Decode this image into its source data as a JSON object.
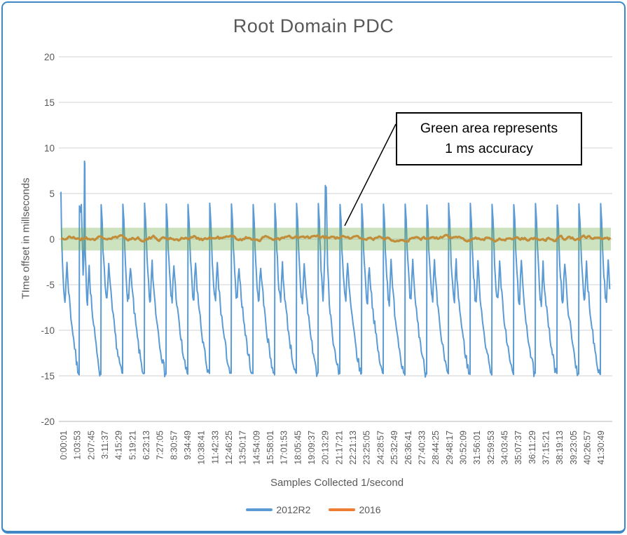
{
  "frame": {
    "border_color": "#3f87c5",
    "background": "#ffffff"
  },
  "chart": {
    "title": "Root Domain PDC",
    "y_axis_title": "TIme offset in millseconds",
    "x_axis_title": "Samples Collected 1/second",
    "annotation": {
      "line1": "Green area represents",
      "line2": "1 ms accuracy"
    },
    "legend": [
      {
        "label": "2012R2",
        "color": "#5B9BD5"
      },
      {
        "label": "2016",
        "color": "#ED7D31"
      }
    ],
    "text_color": "#595959",
    "gridline_color": "#d9d9d9"
  },
  "chart_data": {
    "type": "line",
    "title": "Root Domain PDC",
    "xlabel": "Samples Collected 1/second",
    "ylabel": "TIme offset in millseconds",
    "ylim": [
      -20,
      20
    ],
    "grid": "horizontal",
    "legend_position": "bottom",
    "y_ticks": [
      20,
      15,
      10,
      5,
      0,
      -5,
      -10,
      -15,
      -20
    ],
    "x_tick_labels": [
      "0:00:01",
      "1:03:53",
      "2:07:45",
      "3:11:37",
      "4:15:29",
      "5:19:21",
      "6:23:13",
      "7:27:05",
      "8:30:57",
      "9:34:49",
      "10:38:41",
      "11:42:33",
      "12:46:25",
      "13:50:17",
      "14:54:09",
      "15:58:01",
      "17:01:53",
      "18:05:45",
      "19:09:37",
      "20:13:29",
      "21:17:21",
      "22:21:13",
      "23:25:05",
      "24:28:57",
      "25:32:49",
      "26:36:41",
      "27:40:33",
      "28:44:25",
      "29:48:17",
      "30:52:09",
      "31:56:01",
      "32:59:53",
      "34:03:45",
      "35:07:37",
      "36:11:29",
      "37:15:21",
      "38:19:13",
      "39:23:05",
      "40:26:57",
      "41:30:49"
    ],
    "accuracy_band": {
      "from_ms": -1,
      "to_ms": 1,
      "label": "1 ms accuracy",
      "color": "#70AD47",
      "opacity": 0.35
    },
    "series": [
      {
        "name": "2012R2",
        "color": "#5B9BD5",
        "shape": "sawtooth",
        "cycles": 26,
        "typical_peak_ms": 3.9,
        "trough_ms": -14.8,
        "first_sample_ms": 5.3,
        "max_spike_ms": 8.5,
        "double_peak_ms": 5.8,
        "jitter_ms": 0.55,
        "cycle_pattern": [
          [
            0.0,
            -14.8
          ],
          [
            0.012,
            3.85
          ],
          [
            0.06,
            2.0
          ],
          [
            0.1,
            -0.9
          ],
          [
            0.16,
            -3.8
          ],
          [
            0.23,
            -6.3
          ],
          [
            0.28,
            -6.9
          ],
          [
            0.32,
            -4.6
          ],
          [
            0.36,
            -2.7
          ],
          [
            0.43,
            -5.3
          ],
          [
            0.53,
            -7.9
          ],
          [
            0.65,
            -10.3
          ],
          [
            0.79,
            -12.7
          ],
          [
            0.94,
            -14.6
          ],
          [
            1.0,
            -14.8
          ]
        ],
        "cycle_overrides": {
          "0": [
            [
              0.0,
              5.3
            ],
            [
              0.03,
              1.0
            ],
            [
              0.08,
              -3.0
            ],
            [
              0.15,
              -5.5
            ],
            [
              0.22,
              -6.9
            ],
            [
              0.28,
              -4.6
            ],
            [
              0.33,
              -2.8
            ],
            [
              0.42,
              -5.5
            ],
            [
              0.55,
              -8.5
            ],
            [
              0.7,
              -11.0
            ],
            [
              0.85,
              -13.5
            ],
            [
              0.96,
              -14.7
            ],
            [
              1.0,
              -14.8
            ]
          ],
          "1": [
            [
              0.0,
              -14.8
            ],
            [
              0.012,
              3.7
            ],
            [
              0.06,
              2.9
            ],
            [
              0.1,
              3.9
            ],
            [
              0.14,
              0.0
            ],
            [
              0.18,
              -4.0
            ],
            [
              0.22,
              -2.0
            ],
            [
              0.245,
              8.5
            ],
            [
              0.26,
              8.2
            ],
            [
              0.28,
              -1.5
            ],
            [
              0.33,
              -5.5
            ],
            [
              0.38,
              -6.9
            ],
            [
              0.42,
              -4.6
            ],
            [
              0.46,
              -2.8
            ],
            [
              0.52,
              -5.5
            ],
            [
              0.62,
              -8.5
            ],
            [
              0.74,
              -11.0
            ],
            [
              0.86,
              -13.0
            ],
            [
              0.95,
              -14.6
            ],
            [
              1.0,
              -14.8
            ]
          ],
          "12": [
            [
              0.0,
              -14.8
            ],
            [
              0.012,
              3.85
            ],
            [
              0.06,
              2.0
            ],
            [
              0.11,
              -1.5
            ],
            [
              0.17,
              -4.5
            ],
            [
              0.23,
              -6.5
            ],
            [
              0.27,
              -4.5
            ],
            [
              0.31,
              -1.0
            ],
            [
              0.335,
              5.8
            ],
            [
              0.355,
              4.6
            ],
            [
              0.375,
              5.7
            ],
            [
              0.4,
              2.5
            ],
            [
              0.44,
              -2.5
            ],
            [
              0.52,
              -6.8
            ],
            [
              0.62,
              -9.5
            ],
            [
              0.74,
              -11.8
            ],
            [
              0.87,
              -13.8
            ],
            [
              0.95,
              -14.6
            ],
            [
              1.0,
              -14.8
            ]
          ]
        }
      },
      {
        "name": "2016",
        "color": "#ED7D31",
        "shape": "flat",
        "mean_ms": 0.1,
        "noise_ms": 0.35
      }
    ]
  }
}
